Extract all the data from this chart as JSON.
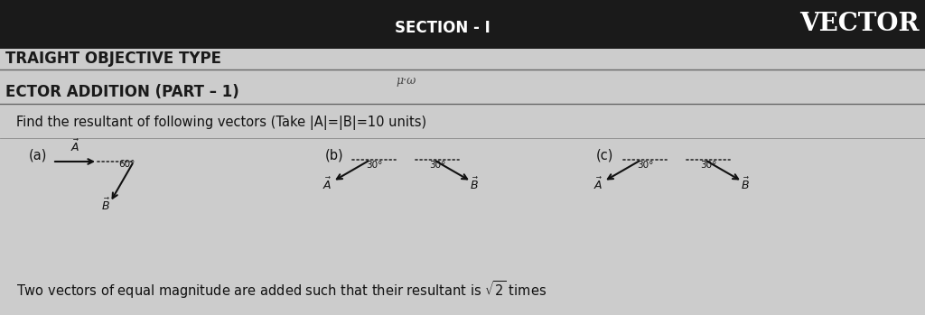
{
  "bg_color": "#d0d0d0",
  "header_bg": "#1a1a1a",
  "header_text": "SECTION - I",
  "header_text_color": "#ffffff",
  "top_right_text": "VECTOR",
  "top_right_color": "#1a1a1a",
  "left_heading": "TRAIGHT OBJECTIVE TYPE",
  "left_heading_color": "#1a1a1a",
  "sub_label": "μ·ω",
  "section_title": "ECTOR ADDITION (PART – 1)",
  "section_title_color": "#1a1a1a",
  "problem_text": "Find the resultant of following vectors (Take |A|=|B|=10 units)",
  "body_bg": "#cccccc",
  "label_a": "(a)",
  "label_b": "(b)",
  "label_c": "(c)",
  "bottom_text": "Two vectors of equal magnitude are added such that their resultant is",
  "dot_color": "#444444",
  "arrow_color": "#111111",
  "text_color": "#111111"
}
